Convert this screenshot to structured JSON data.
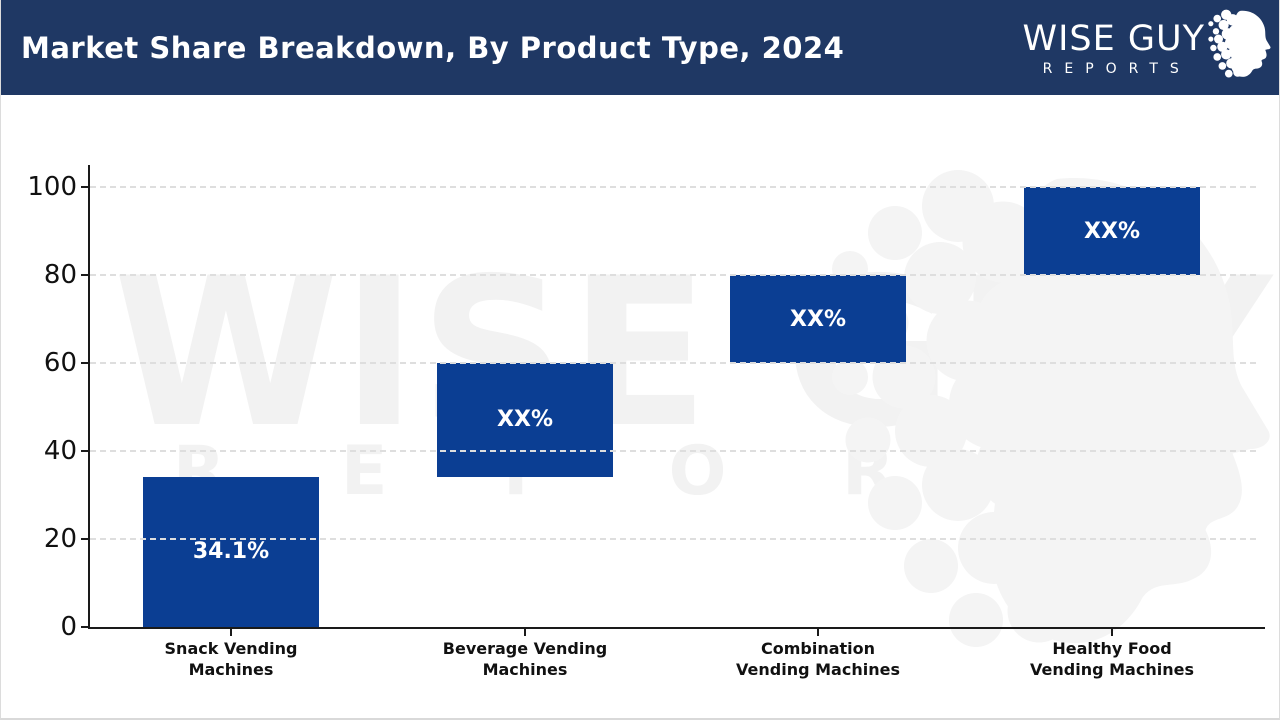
{
  "header": {
    "title": "Market Share Breakdown, By Product Type, 2024",
    "brand": {
      "name_line1": "WISE GUY",
      "name_line2": "REPORTS"
    }
  },
  "watermark": {
    "line1": "WISE GUY",
    "line2": "R E P O R T S"
  },
  "chart_data": {
    "type": "bar",
    "subtype": "waterfall",
    "title": "Market Share Breakdown, By Product Type, 2024",
    "xlabel": "",
    "ylabel": "",
    "ylim": [
      0,
      100
    ],
    "yticks": [
      0,
      20,
      40,
      60,
      80,
      100
    ],
    "grid": "horizontal-dashed",
    "legend": "none",
    "bar_color": "#0b3e93",
    "bar_label_color": "#ffffff",
    "categories": [
      {
        "line1": "Snack Vending",
        "line2": "Machines"
      },
      {
        "line1": "Beverage Vending",
        "line2": "Machines"
      },
      {
        "line1": "Combination",
        "line2": "Vending Machines"
      },
      {
        "line1": "Healthy Food",
        "line2": "Vending Machines"
      }
    ],
    "segments": [
      {
        "category": "Snack Vending Machines",
        "start": 0,
        "end": 34.1,
        "label": "34.1%"
      },
      {
        "category": "Beverage Vending Machines",
        "start": 34.1,
        "end": 60,
        "label": "XX%"
      },
      {
        "category": "Combination Vending Machines",
        "start": 60,
        "end": 80,
        "label": "XX%"
      },
      {
        "category": "Healthy Food Vending Machines",
        "start": 80,
        "end": 100,
        "label": "XX%"
      }
    ]
  },
  "colors": {
    "header_bg": "#1f3864",
    "bar": "#0b3e93",
    "axis": "#1a1a1a",
    "grid": "#dedede",
    "watermark": "#f2f2f2",
    "watermark_head": "#f4f4f4"
  }
}
